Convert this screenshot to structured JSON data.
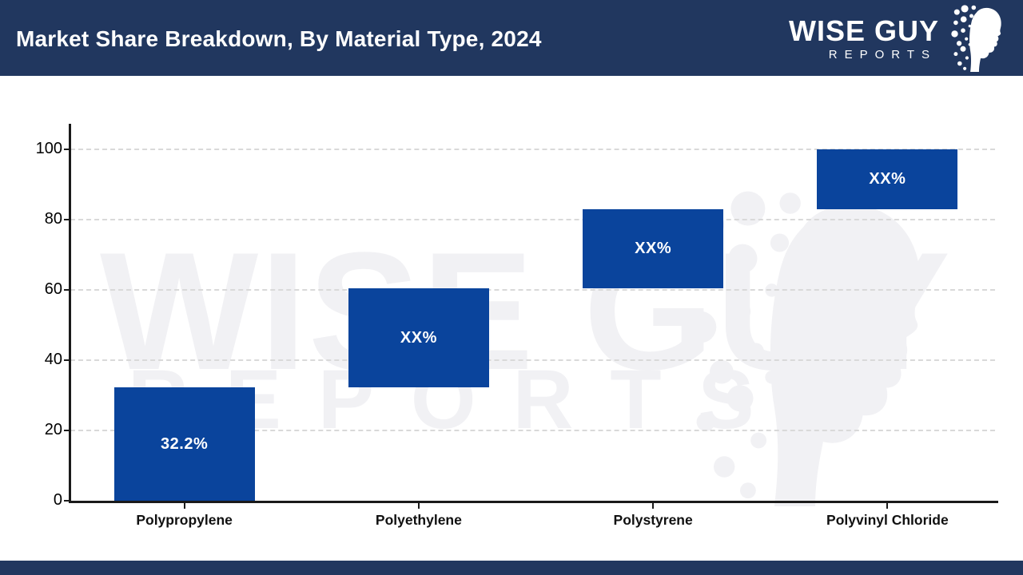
{
  "header": {
    "title": "Market Share Breakdown, By Material Type, 2024"
  },
  "logo": {
    "line1": "WISE GUY",
    "line2": "REPORTS",
    "head_icon": "dotted-head-profile"
  },
  "watermark": {
    "line1": "WISE GUY",
    "line2": "REPORTS",
    "head_icon": "dotted-head-profile"
  },
  "chart_data": {
    "type": "bar",
    "subtype": "waterfall-floating-bars",
    "title": "Market Share Breakdown, By Material Type, 2024",
    "xlabel": "",
    "ylabel": "",
    "categories": [
      "Polypropylene",
      "Polyethylene",
      "Polystyrene",
      "Polyvinyl Chloride"
    ],
    "series": [
      {
        "name": "Market share (%)",
        "segments": [
          {
            "start": 0,
            "end": 32.2,
            "label": "32.2%"
          },
          {
            "start": 32.2,
            "end": 60.4,
            "label": "XX%"
          },
          {
            "start": 60.4,
            "end": 83,
            "label": "XX%"
          },
          {
            "start": 83,
            "end": 100,
            "label": "XX%"
          }
        ]
      }
    ],
    "yticks": [
      0,
      20,
      40,
      60,
      80,
      100
    ],
    "ylim": [
      0,
      107
    ],
    "grid": "horizontal-dashed",
    "legend": "none",
    "colors": {
      "bar": "#0a449c",
      "header_bg": "#21375f",
      "footer_bg": "#21375f",
      "grid": "#d9d9d9",
      "axis": "#1a1a1a",
      "bar_label": "#ffffff",
      "watermark": "#f1f1f4"
    }
  }
}
